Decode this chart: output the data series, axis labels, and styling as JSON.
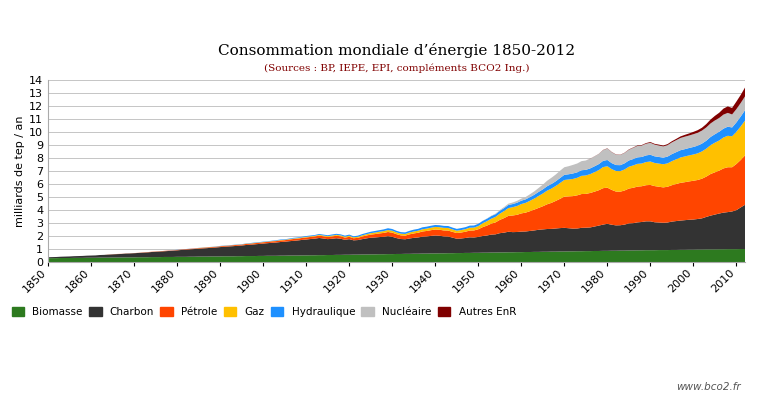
{
  "title": "Consommation mondiale d’énergie 1850-2012",
  "subtitle": "(Sources : BP, IEPE, EPI, compléments BCO2 Ing.)",
  "ylabel": "milliards de tep / an",
  "watermark": "www.bco2.fr",
  "ylim": [
    0,
    14
  ],
  "yticks": [
    0,
    1,
    2,
    3,
    4,
    5,
    6,
    7,
    8,
    9,
    10,
    11,
    12,
    13,
    14
  ],
  "background_color": "#ffffff",
  "colors": {
    "Biomasse": "#2d7a1f",
    "Charbon": "#333333",
    "Pétrole": "#ff4500",
    "Gaz": "#ffc000",
    "Hydraulique": "#1e90ff",
    "Nucléaire": "#c0c0c0",
    "Autres EnR": "#800000"
  },
  "years": [
    1850,
    1851,
    1852,
    1853,
    1854,
    1855,
    1856,
    1857,
    1858,
    1859,
    1860,
    1861,
    1862,
    1863,
    1864,
    1865,
    1866,
    1867,
    1868,
    1869,
    1870,
    1871,
    1872,
    1873,
    1874,
    1875,
    1876,
    1877,
    1878,
    1879,
    1880,
    1881,
    1882,
    1883,
    1884,
    1885,
    1886,
    1887,
    1888,
    1889,
    1890,
    1891,
    1892,
    1893,
    1894,
    1895,
    1896,
    1897,
    1898,
    1899,
    1900,
    1901,
    1902,
    1903,
    1904,
    1905,
    1906,
    1907,
    1908,
    1909,
    1910,
    1911,
    1912,
    1913,
    1914,
    1915,
    1916,
    1917,
    1918,
    1919,
    1920,
    1921,
    1922,
    1923,
    1924,
    1925,
    1926,
    1927,
    1928,
    1929,
    1930,
    1931,
    1932,
    1933,
    1934,
    1935,
    1936,
    1937,
    1938,
    1939,
    1940,
    1941,
    1942,
    1943,
    1944,
    1945,
    1946,
    1947,
    1948,
    1949,
    1950,
    1951,
    1952,
    1953,
    1954,
    1955,
    1956,
    1957,
    1958,
    1959,
    1960,
    1961,
    1962,
    1963,
    1964,
    1965,
    1966,
    1967,
    1968,
    1969,
    1970,
    1971,
    1972,
    1973,
    1974,
    1975,
    1976,
    1977,
    1978,
    1979,
    1980,
    1981,
    1982,
    1983,
    1984,
    1985,
    1986,
    1987,
    1988,
    1989,
    1990,
    1991,
    1992,
    1993,
    1994,
    1995,
    1996,
    1997,
    1998,
    1999,
    2000,
    2001,
    2002,
    2003,
    2004,
    2005,
    2006,
    2007,
    2008,
    2009,
    2010,
    2011,
    2012
  ],
  "Biomasse": [
    0.3,
    0.3,
    0.3,
    0.31,
    0.31,
    0.31,
    0.32,
    0.32,
    0.32,
    0.33,
    0.33,
    0.33,
    0.34,
    0.34,
    0.34,
    0.35,
    0.35,
    0.35,
    0.36,
    0.36,
    0.36,
    0.37,
    0.37,
    0.37,
    0.38,
    0.38,
    0.38,
    0.39,
    0.39,
    0.39,
    0.4,
    0.4,
    0.4,
    0.41,
    0.41,
    0.42,
    0.42,
    0.42,
    0.43,
    0.43,
    0.43,
    0.44,
    0.44,
    0.44,
    0.45,
    0.45,
    0.46,
    0.46,
    0.46,
    0.47,
    0.47,
    0.48,
    0.48,
    0.48,
    0.49,
    0.49,
    0.5,
    0.5,
    0.5,
    0.51,
    0.51,
    0.52,
    0.52,
    0.53,
    0.53,
    0.54,
    0.54,
    0.55,
    0.55,
    0.56,
    0.56,
    0.57,
    0.57,
    0.58,
    0.58,
    0.59,
    0.59,
    0.6,
    0.6,
    0.61,
    0.61,
    0.62,
    0.62,
    0.63,
    0.63,
    0.64,
    0.64,
    0.65,
    0.65,
    0.66,
    0.66,
    0.67,
    0.67,
    0.68,
    0.68,
    0.69,
    0.69,
    0.7,
    0.7,
    0.71,
    0.71,
    0.72,
    0.72,
    0.73,
    0.73,
    0.74,
    0.74,
    0.75,
    0.75,
    0.76,
    0.76,
    0.77,
    0.77,
    0.78,
    0.78,
    0.79,
    0.79,
    0.8,
    0.8,
    0.81,
    0.81,
    0.82,
    0.82,
    0.83,
    0.83,
    0.84,
    0.84,
    0.85,
    0.85,
    0.86,
    0.86,
    0.87,
    0.87,
    0.88,
    0.88,
    0.89,
    0.89,
    0.9,
    0.9,
    0.91,
    0.91,
    0.91,
    0.92,
    0.92,
    0.92,
    0.93,
    0.93,
    0.94,
    0.94,
    0.95,
    0.95,
    0.96,
    0.96,
    0.97,
    0.97,
    0.97,
    0.98,
    0.98,
    0.99,
    0.99,
    0.99,
    1.0,
    1.0
  ],
  "Charbon": [
    0.07,
    0.08,
    0.09,
    0.1,
    0.11,
    0.12,
    0.13,
    0.14,
    0.15,
    0.16,
    0.17,
    0.18,
    0.2,
    0.21,
    0.23,
    0.24,
    0.26,
    0.27,
    0.29,
    0.3,
    0.32,
    0.33,
    0.35,
    0.37,
    0.39,
    0.41,
    0.43,
    0.44,
    0.46,
    0.48,
    0.5,
    0.53,
    0.55,
    0.57,
    0.59,
    0.61,
    0.63,
    0.65,
    0.67,
    0.69,
    0.72,
    0.74,
    0.76,
    0.78,
    0.8,
    0.82,
    0.85,
    0.87,
    0.9,
    0.92,
    0.95,
    0.97,
    1.0,
    1.02,
    1.05,
    1.07,
    1.1,
    1.13,
    1.16,
    1.19,
    1.22,
    1.25,
    1.28,
    1.32,
    1.28,
    1.22,
    1.25,
    1.28,
    1.24,
    1.15,
    1.2,
    1.1,
    1.12,
    1.18,
    1.24,
    1.28,
    1.3,
    1.32,
    1.34,
    1.38,
    1.33,
    1.22,
    1.15,
    1.12,
    1.18,
    1.22,
    1.25,
    1.3,
    1.32,
    1.35,
    1.38,
    1.35,
    1.3,
    1.28,
    1.2,
    1.1,
    1.12,
    1.15,
    1.2,
    1.18,
    1.22,
    1.28,
    1.32,
    1.38,
    1.4,
    1.48,
    1.52,
    1.58,
    1.55,
    1.55,
    1.58,
    1.58,
    1.62,
    1.65,
    1.7,
    1.72,
    1.75,
    1.75,
    1.78,
    1.8,
    1.82,
    1.78,
    1.75,
    1.75,
    1.8,
    1.8,
    1.82,
    1.88,
    1.95,
    2.02,
    2.08,
    2.0,
    1.95,
    1.95,
    2.0,
    2.08,
    2.1,
    2.15,
    2.18,
    2.22,
    2.22,
    2.15,
    2.12,
    2.1,
    2.12,
    2.18,
    2.22,
    2.25,
    2.28,
    2.3,
    2.32,
    2.35,
    2.4,
    2.5,
    2.6,
    2.68,
    2.75,
    2.82,
    2.85,
    2.9,
    3.0,
    3.2,
    3.4
  ],
  "Pétrole": [
    0.0,
    0.0,
    0.0,
    0.0,
    0.0,
    0.0,
    0.0,
    0.0,
    0.0,
    0.0,
    0.0,
    0.0,
    0.0,
    0.0,
    0.01,
    0.01,
    0.01,
    0.01,
    0.01,
    0.01,
    0.01,
    0.01,
    0.02,
    0.02,
    0.02,
    0.02,
    0.02,
    0.03,
    0.03,
    0.03,
    0.03,
    0.03,
    0.04,
    0.04,
    0.04,
    0.04,
    0.05,
    0.05,
    0.05,
    0.05,
    0.06,
    0.06,
    0.06,
    0.07,
    0.07,
    0.07,
    0.08,
    0.08,
    0.09,
    0.09,
    0.1,
    0.1,
    0.11,
    0.11,
    0.12,
    0.12,
    0.13,
    0.14,
    0.14,
    0.15,
    0.16,
    0.16,
    0.17,
    0.18,
    0.17,
    0.17,
    0.18,
    0.19,
    0.19,
    0.17,
    0.18,
    0.16,
    0.17,
    0.2,
    0.22,
    0.24,
    0.26,
    0.28,
    0.3,
    0.32,
    0.32,
    0.3,
    0.28,
    0.28,
    0.32,
    0.34,
    0.36,
    0.4,
    0.42,
    0.44,
    0.46,
    0.46,
    0.46,
    0.46,
    0.44,
    0.44,
    0.46,
    0.48,
    0.52,
    0.54,
    0.59,
    0.68,
    0.76,
    0.84,
    0.92,
    1.02,
    1.12,
    1.22,
    1.28,
    1.32,
    1.4,
    1.45,
    1.52,
    1.6,
    1.68,
    1.78,
    1.9,
    2.0,
    2.12,
    2.25,
    2.4,
    2.45,
    2.5,
    2.55,
    2.6,
    2.6,
    2.65,
    2.68,
    2.72,
    2.8,
    2.78,
    2.68,
    2.6,
    2.58,
    2.62,
    2.68,
    2.72,
    2.75,
    2.75,
    2.78,
    2.8,
    2.78,
    2.75,
    2.72,
    2.75,
    2.8,
    2.85,
    2.9,
    2.92,
    2.95,
    2.98,
    3.0,
    3.05,
    3.1,
    3.2,
    3.25,
    3.3,
    3.4,
    3.45,
    3.4,
    3.55,
    3.65,
    3.8
  ],
  "Gaz": [
    0.0,
    0.0,
    0.0,
    0.0,
    0.0,
    0.0,
    0.0,
    0.0,
    0.0,
    0.0,
    0.0,
    0.0,
    0.0,
    0.0,
    0.0,
    0.0,
    0.0,
    0.0,
    0.0,
    0.0,
    0.0,
    0.0,
    0.0,
    0.0,
    0.0,
    0.0,
    0.0,
    0.0,
    0.0,
    0.0,
    0.0,
    0.0,
    0.0,
    0.0,
    0.0,
    0.01,
    0.01,
    0.01,
    0.01,
    0.01,
    0.01,
    0.01,
    0.01,
    0.01,
    0.01,
    0.01,
    0.02,
    0.02,
    0.02,
    0.02,
    0.02,
    0.02,
    0.02,
    0.03,
    0.03,
    0.03,
    0.03,
    0.04,
    0.04,
    0.04,
    0.05,
    0.05,
    0.05,
    0.06,
    0.06,
    0.06,
    0.07,
    0.07,
    0.07,
    0.07,
    0.08,
    0.07,
    0.08,
    0.09,
    0.1,
    0.11,
    0.12,
    0.13,
    0.14,
    0.15,
    0.15,
    0.14,
    0.13,
    0.13,
    0.14,
    0.15,
    0.16,
    0.17,
    0.18,
    0.19,
    0.2,
    0.2,
    0.2,
    0.2,
    0.19,
    0.18,
    0.19,
    0.2,
    0.22,
    0.22,
    0.25,
    0.3,
    0.34,
    0.38,
    0.42,
    0.48,
    0.54,
    0.6,
    0.64,
    0.68,
    0.72,
    0.75,
    0.8,
    0.85,
    0.92,
    0.98,
    1.05,
    1.1,
    1.15,
    1.22,
    1.28,
    1.3,
    1.32,
    1.35,
    1.4,
    1.42,
    1.45,
    1.5,
    1.55,
    1.62,
    1.65,
    1.6,
    1.58,
    1.58,
    1.62,
    1.68,
    1.72,
    1.75,
    1.75,
    1.78,
    1.8,
    1.78,
    1.78,
    1.78,
    1.8,
    1.85,
    1.9,
    1.95,
    1.98,
    2.0,
    2.02,
    2.05,
    2.1,
    2.15,
    2.22,
    2.28,
    2.32,
    2.38,
    2.42,
    2.38,
    2.48,
    2.58,
    2.68
  ],
  "Hydraulique": [
    0.0,
    0.0,
    0.0,
    0.0,
    0.0,
    0.0,
    0.0,
    0.0,
    0.0,
    0.0,
    0.0,
    0.0,
    0.0,
    0.0,
    0.0,
    0.0,
    0.0,
    0.0,
    0.0,
    0.0,
    0.0,
    0.0,
    0.0,
    0.0,
    0.0,
    0.0,
    0.0,
    0.0,
    0.01,
    0.01,
    0.01,
    0.01,
    0.01,
    0.01,
    0.01,
    0.01,
    0.01,
    0.01,
    0.01,
    0.02,
    0.02,
    0.02,
    0.02,
    0.02,
    0.02,
    0.02,
    0.02,
    0.03,
    0.03,
    0.03,
    0.03,
    0.03,
    0.03,
    0.04,
    0.04,
    0.04,
    0.04,
    0.05,
    0.05,
    0.05,
    0.06,
    0.06,
    0.06,
    0.07,
    0.07,
    0.07,
    0.08,
    0.08,
    0.08,
    0.08,
    0.09,
    0.08,
    0.09,
    0.1,
    0.1,
    0.11,
    0.12,
    0.12,
    0.13,
    0.14,
    0.13,
    0.12,
    0.12,
    0.12,
    0.13,
    0.14,
    0.14,
    0.15,
    0.15,
    0.15,
    0.15,
    0.15,
    0.15,
    0.15,
    0.14,
    0.14,
    0.15,
    0.15,
    0.16,
    0.16,
    0.17,
    0.18,
    0.19,
    0.2,
    0.21,
    0.22,
    0.23,
    0.24,
    0.24,
    0.25,
    0.26,
    0.27,
    0.28,
    0.29,
    0.31,
    0.32,
    0.34,
    0.35,
    0.36,
    0.38,
    0.4,
    0.4,
    0.42,
    0.42,
    0.43,
    0.43,
    0.44,
    0.45,
    0.46,
    0.48,
    0.48,
    0.46,
    0.46,
    0.46,
    0.47,
    0.48,
    0.49,
    0.5,
    0.5,
    0.51,
    0.52,
    0.51,
    0.51,
    0.51,
    0.52,
    0.54,
    0.55,
    0.56,
    0.56,
    0.57,
    0.58,
    0.59,
    0.6,
    0.61,
    0.63,
    0.65,
    0.67,
    0.68,
    0.7,
    0.68,
    0.72,
    0.76,
    0.8
  ],
  "Nucléaire": [
    0.0,
    0.0,
    0.0,
    0.0,
    0.0,
    0.0,
    0.0,
    0.0,
    0.0,
    0.0,
    0.0,
    0.0,
    0.0,
    0.0,
    0.0,
    0.0,
    0.0,
    0.0,
    0.0,
    0.0,
    0.0,
    0.0,
    0.0,
    0.0,
    0.0,
    0.0,
    0.0,
    0.0,
    0.0,
    0.0,
    0.0,
    0.0,
    0.0,
    0.0,
    0.0,
    0.0,
    0.0,
    0.0,
    0.0,
    0.0,
    0.0,
    0.0,
    0.0,
    0.0,
    0.0,
    0.0,
    0.0,
    0.0,
    0.0,
    0.0,
    0.0,
    0.0,
    0.0,
    0.0,
    0.0,
    0.0,
    0.0,
    0.0,
    0.0,
    0.0,
    0.0,
    0.0,
    0.0,
    0.0,
    0.0,
    0.0,
    0.0,
    0.0,
    0.0,
    0.0,
    0.0,
    0.0,
    0.0,
    0.0,
    0.0,
    0.0,
    0.0,
    0.0,
    0.0,
    0.0,
    0.0,
    0.0,
    0.0,
    0.0,
    0.0,
    0.0,
    0.0,
    0.0,
    0.0,
    0.0,
    0.0,
    0.0,
    0.0,
    0.0,
    0.0,
    0.0,
    0.0,
    0.0,
    0.0,
    0.0,
    0.0,
    0.01,
    0.02,
    0.03,
    0.04,
    0.06,
    0.08,
    0.1,
    0.12,
    0.14,
    0.16,
    0.18,
    0.22,
    0.26,
    0.3,
    0.36,
    0.42,
    0.48,
    0.52,
    0.56,
    0.58,
    0.62,
    0.66,
    0.68,
    0.7,
    0.72,
    0.74,
    0.76,
    0.78,
    0.82,
    0.88,
    0.84,
    0.8,
    0.78,
    0.8,
    0.82,
    0.86,
    0.88,
    0.88,
    0.9,
    0.92,
    0.9,
    0.88,
    0.86,
    0.88,
    0.9,
    0.92,
    0.94,
    0.96,
    0.96,
    0.98,
    0.99,
    1.0,
    1.02,
    1.04,
    1.06,
    1.06,
    1.08,
    1.06,
    1.0,
    1.02,
    1.04,
    1.06
  ],
  "Autres EnR": [
    0.0,
    0.0,
    0.0,
    0.0,
    0.0,
    0.0,
    0.0,
    0.0,
    0.0,
    0.0,
    0.0,
    0.0,
    0.0,
    0.0,
    0.0,
    0.0,
    0.0,
    0.0,
    0.0,
    0.0,
    0.0,
    0.0,
    0.0,
    0.0,
    0.0,
    0.0,
    0.0,
    0.0,
    0.0,
    0.0,
    0.0,
    0.0,
    0.0,
    0.0,
    0.0,
    0.0,
    0.0,
    0.0,
    0.0,
    0.0,
    0.0,
    0.0,
    0.0,
    0.0,
    0.0,
    0.0,
    0.0,
    0.0,
    0.0,
    0.0,
    0.0,
    0.0,
    0.0,
    0.0,
    0.0,
    0.0,
    0.0,
    0.0,
    0.0,
    0.0,
    0.0,
    0.0,
    0.0,
    0.0,
    0.0,
    0.0,
    0.0,
    0.0,
    0.0,
    0.0,
    0.0,
    0.0,
    0.0,
    0.0,
    0.0,
    0.0,
    0.0,
    0.0,
    0.0,
    0.0,
    0.0,
    0.0,
    0.0,
    0.0,
    0.0,
    0.0,
    0.0,
    0.0,
    0.0,
    0.0,
    0.0,
    0.0,
    0.0,
    0.0,
    0.0,
    0.0,
    0.0,
    0.0,
    0.0,
    0.0,
    0.0,
    0.0,
    0.0,
    0.0,
    0.0,
    0.0,
    0.0,
    0.0,
    0.0,
    0.0,
    0.0,
    0.0,
    0.0,
    0.0,
    0.0,
    0.0,
    0.0,
    0.0,
    0.0,
    0.0,
    0.0,
    0.0,
    0.0,
    0.0,
    0.0,
    0.0,
    0.01,
    0.01,
    0.01,
    0.02,
    0.02,
    0.02,
    0.02,
    0.02,
    0.02,
    0.03,
    0.03,
    0.04,
    0.04,
    0.05,
    0.06,
    0.06,
    0.07,
    0.07,
    0.08,
    0.09,
    0.1,
    0.12,
    0.14,
    0.16,
    0.18,
    0.2,
    0.22,
    0.26,
    0.3,
    0.35,
    0.4,
    0.46,
    0.5,
    0.5,
    0.58,
    0.62,
    0.68
  ]
}
